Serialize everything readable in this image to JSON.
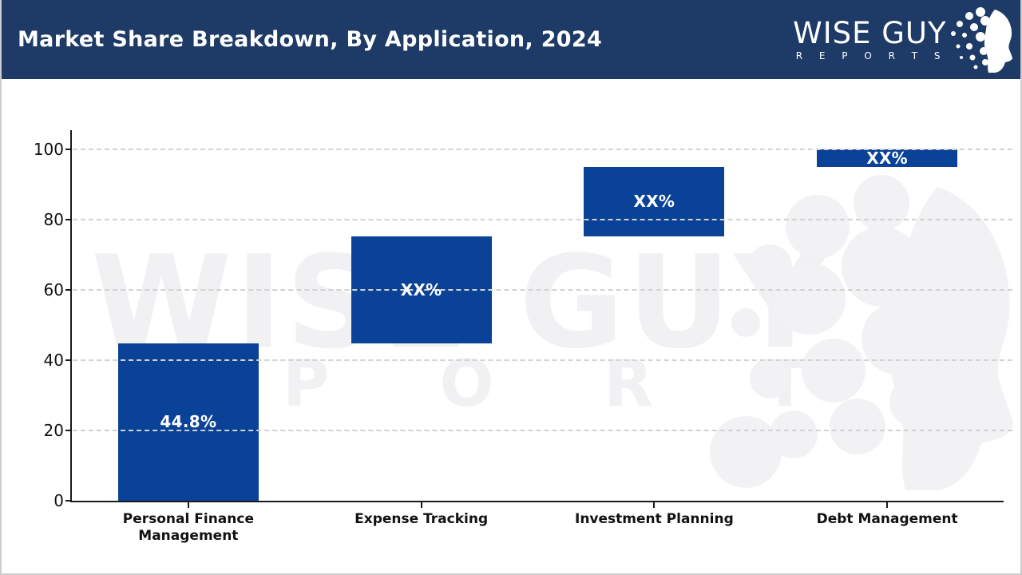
{
  "header": {
    "title": "Market Share Breakdown, By Application, 2024",
    "logo": {
      "line1": "WISE GUY",
      "line2": "R E P O R T S"
    }
  },
  "watermark": {
    "line1": "WISE GUY",
    "line2": "P O R T S"
  },
  "colors": {
    "header_bg": "#1e3a66",
    "bar": "#0a4298",
    "bar_label": "#ffffff",
    "gridline": "#d2d2d2",
    "axis": "#1a1a1a",
    "watermark": "#f1f1f4",
    "frame_border": "#cdcdcd"
  },
  "chart_data": {
    "type": "bar",
    "subtype": "waterfall",
    "title": "Market Share Breakdown, By Application, 2024",
    "categories": [
      "Personal Finance Management",
      "Expense Tracking",
      "Investment Planning",
      "Debt Management"
    ],
    "segments": [
      {
        "category": "Personal Finance Management",
        "start": 0,
        "end": 44.8,
        "label": "44.8%"
      },
      {
        "category": "Expense Tracking",
        "start": 44.8,
        "end": 75.3,
        "label": "XX%"
      },
      {
        "category": "Investment Planning",
        "start": 75.3,
        "end": 95.0,
        "label": "XX%"
      },
      {
        "category": "Debt Management",
        "start": 95.0,
        "end": 100,
        "label": "XX%"
      }
    ],
    "xlabel": "",
    "ylabel": "",
    "yticks": [
      0,
      20,
      40,
      60,
      80,
      100
    ],
    "ylim": [
      0,
      105.5
    ],
    "grid": {
      "horizontal": true,
      "style": "dashed",
      "drawn_over_bars": true
    },
    "legend": "none",
    "bar_color": "#0a4298",
    "label_color": "#ffffff"
  }
}
